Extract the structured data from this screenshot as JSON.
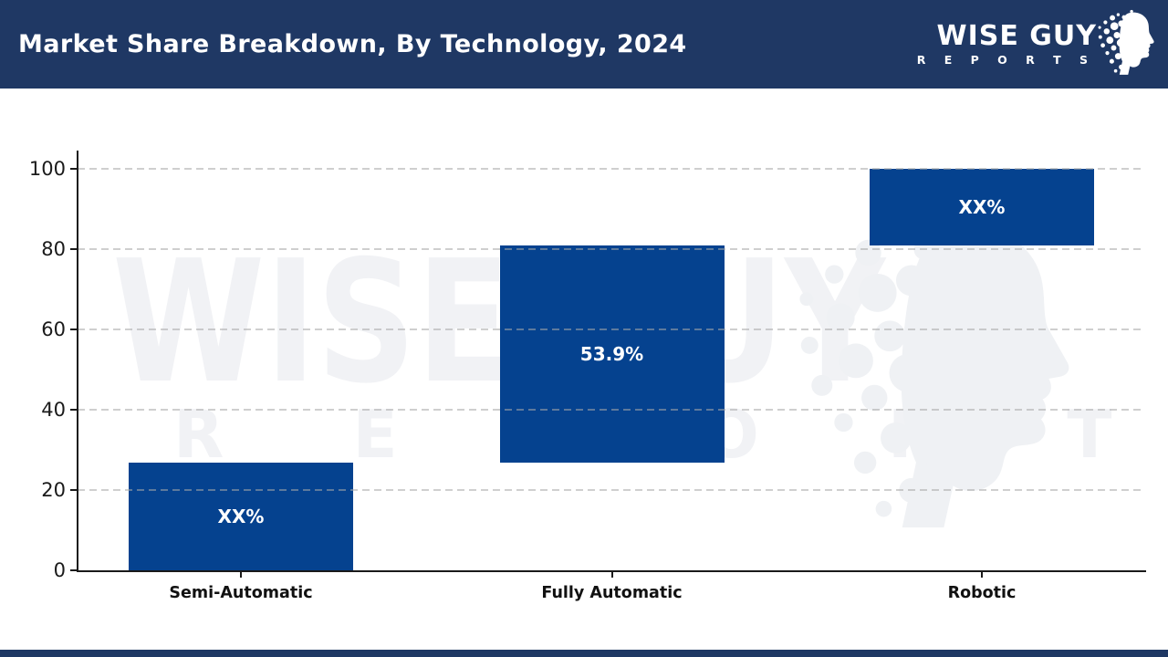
{
  "header": {
    "title": "Market Share Breakdown, By Technology, 2024",
    "logo": {
      "wordmark": "WISE GUY",
      "subtitle": "R E P O R T S"
    }
  },
  "watermark": {
    "wordmark": "WISE GUY",
    "subtitle": "R E P O R T S"
  },
  "chart_data": {
    "type": "bar",
    "subtype": "floating-waterfall",
    "title": "Market Share Breakdown, By Technology, 2024",
    "categories": [
      "Semi-Automatic",
      "Fully Automatic",
      "Robotic"
    ],
    "segments": [
      {
        "category": "Semi-Automatic",
        "start": 0,
        "end": 26.9,
        "label": "XX%"
      },
      {
        "category": "Fully Automatic",
        "start": 26.9,
        "end": 80.8,
        "label": "53.9%"
      },
      {
        "category": "Robotic",
        "start": 80.8,
        "end": 100,
        "label": "XX%"
      }
    ],
    "xlabel": "",
    "ylabel": "",
    "y_ticks": [
      0,
      20,
      40,
      60,
      80,
      100
    ],
    "ylim": [
      0,
      104.5
    ],
    "grid": "horizontal-dashed",
    "legend": "none",
    "bar_color": "#05428F",
    "bar_label_color": "#ffffff"
  },
  "colors": {
    "header_bg": "#1f3864",
    "footer_bg": "#1f3864",
    "axis": "#1a1a1a",
    "gridline": "#d8d8d8",
    "watermark": "#f1f2f5",
    "background": "#ffffff"
  }
}
